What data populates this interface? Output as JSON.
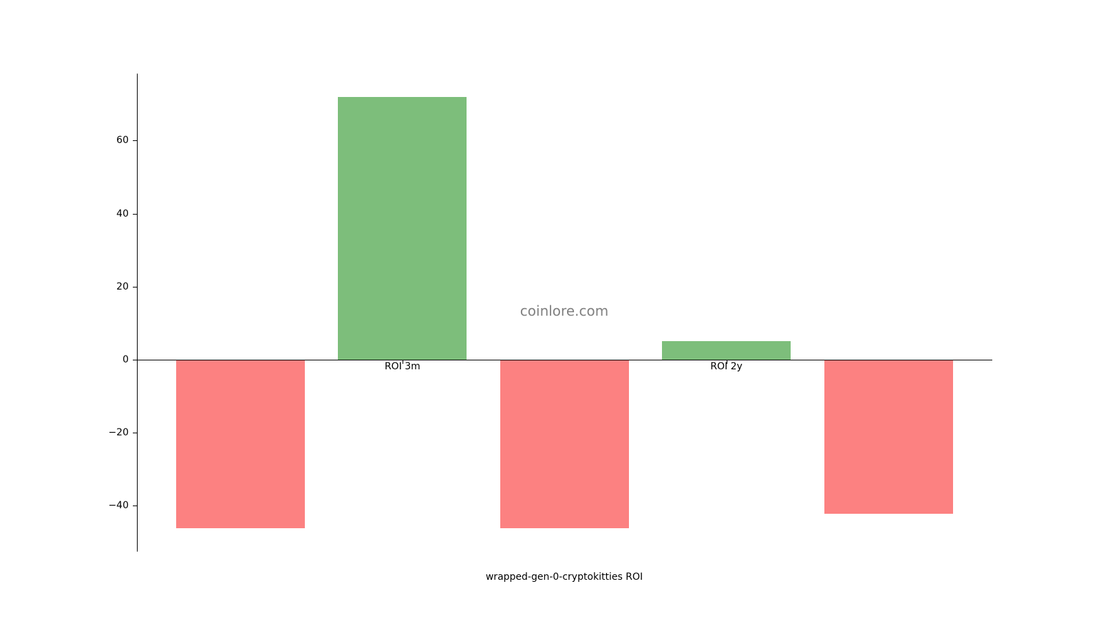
{
  "chart_data": {
    "type": "bar",
    "title": "wrapped-gen-0-cryptokitties ROI",
    "watermark": "coinlore.com",
    "bars": [
      {
        "value": -46
      },
      {
        "value": 72,
        "label": "ROI 3m"
      },
      {
        "value": -46
      },
      {
        "value": 5,
        "label": "ROI 2y"
      },
      {
        "value": -42
      }
    ],
    "yticks": [
      {
        "value": 60,
        "label": "60"
      },
      {
        "value": 40,
        "label": "40"
      },
      {
        "value": 20,
        "label": "20"
      },
      {
        "value": 0,
        "label": "0"
      },
      {
        "value": -20,
        "label": "−20"
      },
      {
        "value": -40,
        "label": "−40"
      }
    ],
    "ylim": [
      -52.5,
      78.4
    ],
    "xlabel": "",
    "ylabel": "",
    "grid": false,
    "legend": null,
    "colors": {
      "positive": "#7dbe7b",
      "negative": "#fc8181",
      "axis": "#000000",
      "tick_text": "#000000",
      "watermark": "#808080"
    }
  }
}
